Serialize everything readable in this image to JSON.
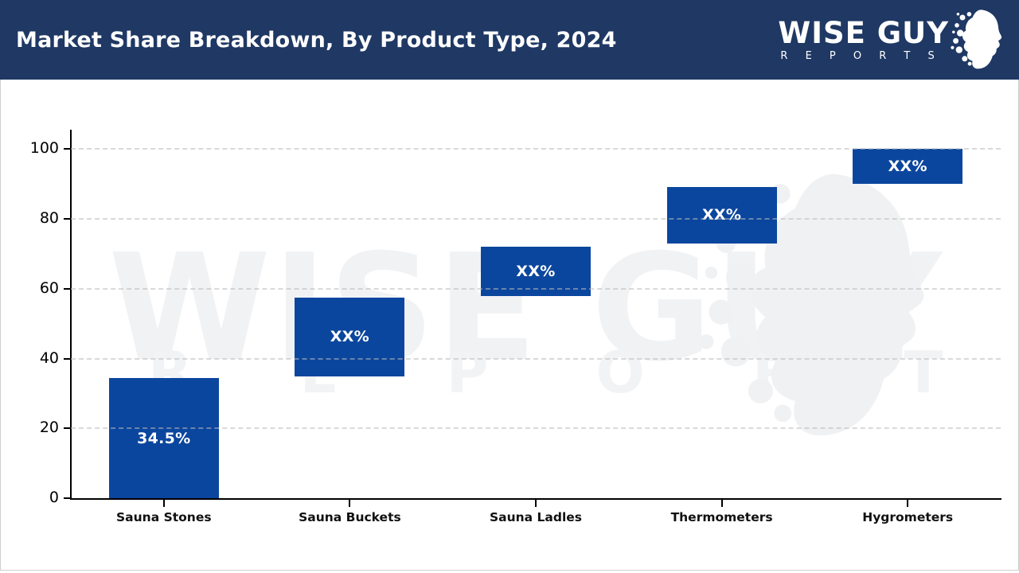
{
  "header": {
    "title": "Market Share Breakdown, By Product Type, 2024",
    "logo": {
      "wordmark": "WISE GUY",
      "subtitle": "R E P O R T S"
    }
  },
  "watermark": {
    "line1": "WISE GUY",
    "line2": "R E P O R T S"
  },
  "colors": {
    "header_bg": "#1f3864",
    "bar": "#0b469e",
    "bar_label": "#ffffff",
    "grid": "#bdbdbd",
    "axis": "#000000",
    "watermark": "#f1f2f4"
  },
  "chart_data": {
    "type": "bar",
    "subtype": "floating-segment (waterfall-style market share)",
    "title": "Market Share Breakdown, By Product Type, 2024",
    "xlabel": "",
    "ylabel": "",
    "ylim": [
      0,
      105
    ],
    "yticks": [
      0,
      20,
      40,
      60,
      80,
      100
    ],
    "grid": "horizontal dashed",
    "legend": "none",
    "categories": [
      "Sauna Stones",
      "Sauna Buckets",
      "Sauna Ladles",
      "Thermometers",
      "Hygrometers"
    ],
    "segments": [
      {
        "category": "Sauna Stones",
        "start": 0,
        "end": 34.5,
        "label": "34.5%"
      },
      {
        "category": "Sauna Buckets",
        "start": 35,
        "end": 57.5,
        "label": "XX%"
      },
      {
        "category": "Sauna Ladles",
        "start": 58,
        "end": 72,
        "label": "XX%"
      },
      {
        "category": "Thermometers",
        "start": 73,
        "end": 89,
        "label": "XX%"
      },
      {
        "category": "Hygrometers",
        "start": 90,
        "end": 100,
        "label": "XX%"
      }
    ]
  }
}
